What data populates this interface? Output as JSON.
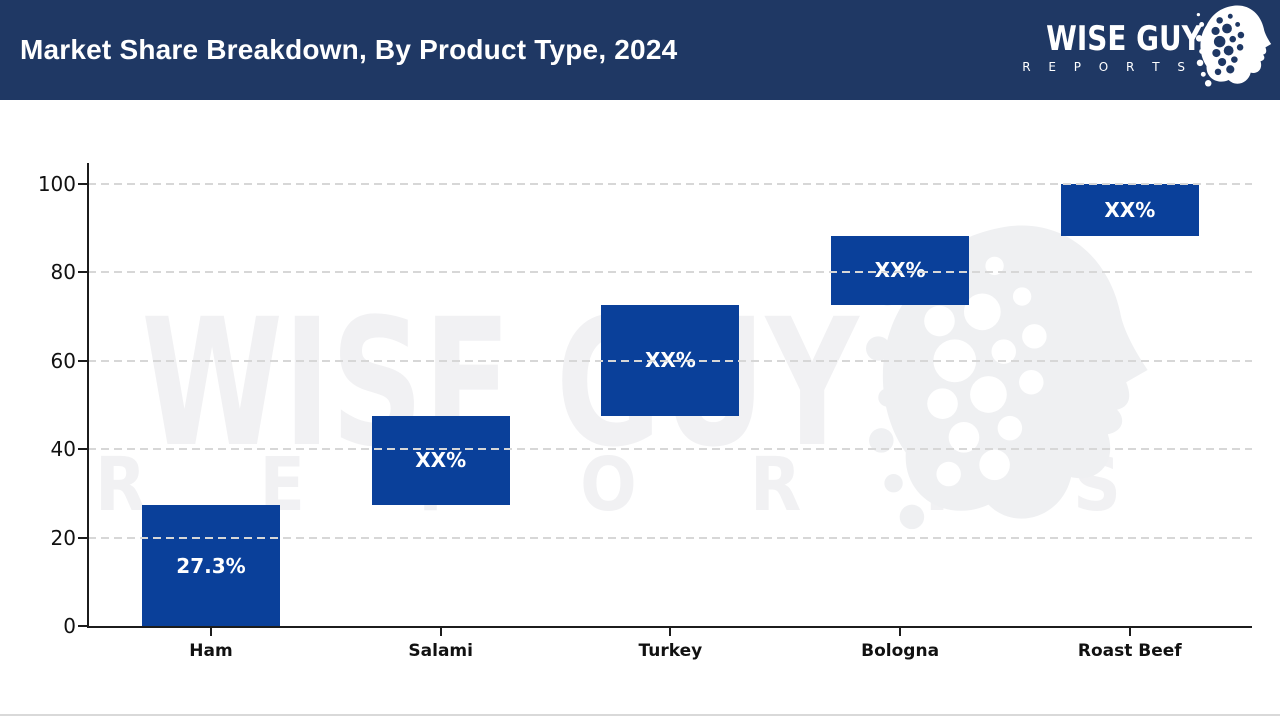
{
  "header": {
    "title": "Market Share Breakdown, By Product Type, 2024",
    "logo": {
      "line1": "WISE GUY",
      "line2": "R E P O R T S"
    }
  },
  "watermark": {
    "line1": "WISE GUY",
    "line2": "R E P O R T S"
  },
  "colors": {
    "header_bg": "#1f3864",
    "bar": "#0a409a",
    "grid": "#d7d7d7",
    "axis": "#1c1c1c",
    "watermark": "#f1f1f3"
  },
  "chart_data": {
    "type": "bar",
    "subtype": "waterfall",
    "title": "Market Share Breakdown, By Product Type, 2024",
    "categories": [
      "Ham",
      "Salami",
      "Turkey",
      "Bologna",
      "Roast Beef"
    ],
    "bars": [
      {
        "category": "Ham",
        "start": 0,
        "end": 27.3,
        "label": "27.3%"
      },
      {
        "category": "Salami",
        "start": 27.3,
        "end": 47.6,
        "label": "XX%"
      },
      {
        "category": "Turkey",
        "start": 47.6,
        "end": 72.7,
        "label": "XX%"
      },
      {
        "category": "Bologna",
        "start": 72.7,
        "end": 88.2,
        "label": "XX%"
      },
      {
        "category": "Roast Beef",
        "start": 88.2,
        "end": 100,
        "label": "XX%"
      }
    ],
    "yticks": [
      0,
      20,
      40,
      60,
      80,
      100
    ],
    "ylim": [
      0,
      105
    ],
    "xlabel": "",
    "ylabel": "",
    "grid": "horizontal-dashed-on-top",
    "legend": "none",
    "bar_color": "#0a409a"
  }
}
